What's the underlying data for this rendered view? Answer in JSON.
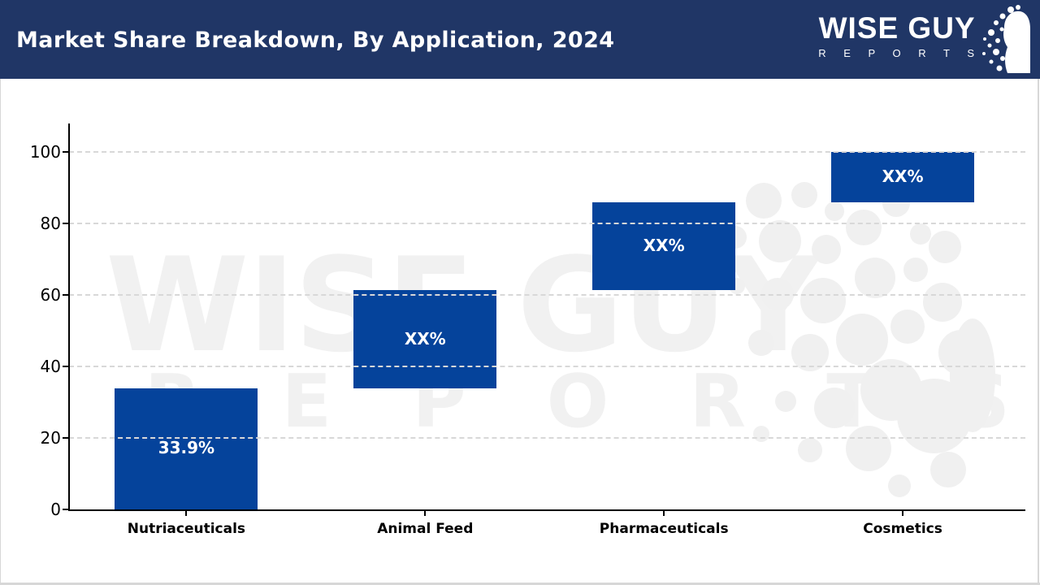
{
  "header": {
    "title": "Market Share Breakdown, By Application, 2024",
    "logo": {
      "name_top": "WISE GUY",
      "name_bottom": "R E P O R T S"
    }
  },
  "watermark": {
    "line1": "WISE GUY",
    "line2": "R E P O R T S"
  },
  "chart_data": {
    "type": "bar",
    "subtype": "floating-waterfall",
    "title": "Market Share Breakdown, By Application, 2024",
    "categories": [
      "Nutriaceuticals",
      "Animal Feed",
      "Pharmaceuticals",
      "Cosmetics"
    ],
    "bars": [
      {
        "category": "Nutriaceuticals",
        "label": "33.9%",
        "start": 0,
        "end": 33.9
      },
      {
        "category": "Animal Feed",
        "label": "XX%",
        "start": 33.9,
        "end": 61.3
      },
      {
        "category": "Pharmaceuticals",
        "label": "XX%",
        "start": 61.3,
        "end": 85.9
      },
      {
        "category": "Cosmetics",
        "label": "XX%",
        "start": 85.9,
        "end": 100
      }
    ],
    "xlabel": "",
    "ylabel": "",
    "ylim": [
      0,
      100
    ],
    "yticks": [
      0,
      20,
      40,
      60,
      80,
      100
    ],
    "grid": "horizontal-dashed",
    "legend": "none",
    "bar_color": "#05439b",
    "bar_label_color": "#ffffff",
    "axis_color": "#000000",
    "gridline_color": "#d8d8d8",
    "tick_label_color": "#000000"
  },
  "colors": {
    "header_bg": "#203666",
    "header_text": "#ffffff",
    "watermark": "#f1f1f1",
    "page_bg": "#ffffff",
    "border_line": "#d7d7d7"
  }
}
